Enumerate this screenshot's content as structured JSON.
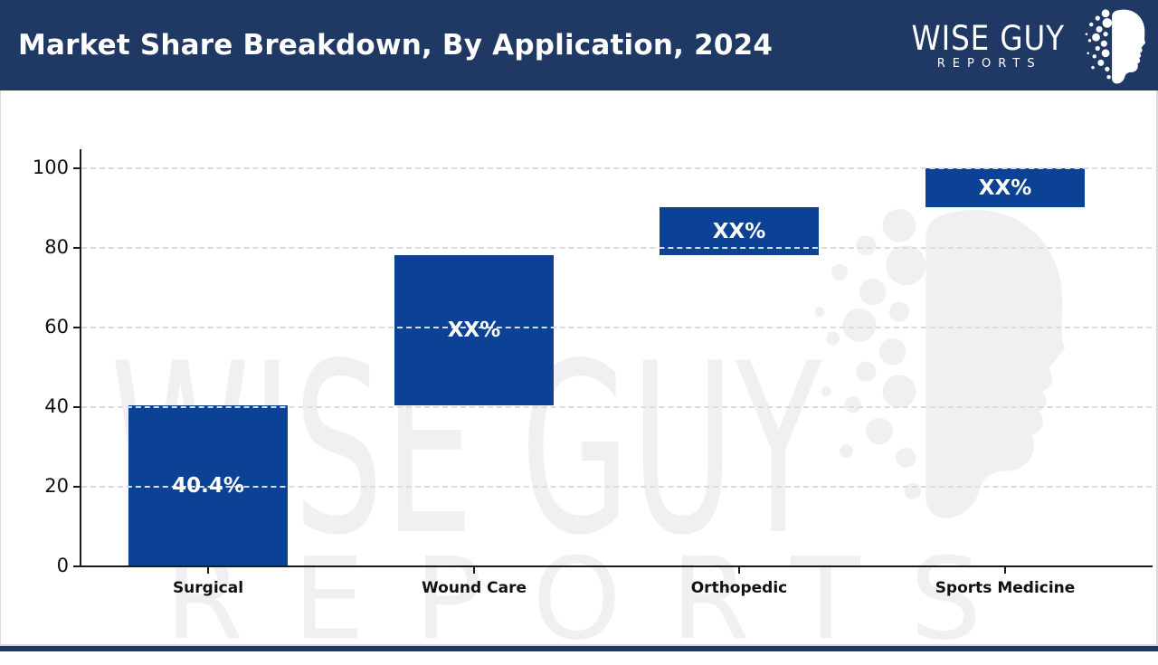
{
  "header": {
    "title": "Market Share Breakdown, By Application, 2024",
    "logo_name": "WISE GUY",
    "logo_sub": "REPORTS"
  },
  "watermark": {
    "name": "WISE GUY",
    "sub": "REPORTS"
  },
  "colors": {
    "header_bg": "#203864",
    "footer_bg": "#203864",
    "bar": "#0b4295",
    "grid": "#dcdcdc",
    "axis": "#1a1a1a",
    "bar_label": "#ffffff",
    "watermark": "#f0f0f2"
  },
  "chart_data": {
    "type": "bar",
    "subtype": "waterfall",
    "title": "Market Share Breakdown, By Application, 2024",
    "categories": [
      "Surgical",
      "Wound Care",
      "Orthopedic",
      "Sports Medicine"
    ],
    "segments": [
      {
        "category": "Surgical",
        "start": 0,
        "end": 40.4,
        "label": "40.4%"
      },
      {
        "category": "Wound Care",
        "start": 40.4,
        "end": 78.2,
        "label": "XX%"
      },
      {
        "category": "Orthopedic",
        "start": 78.2,
        "end": 90.2,
        "label": "XX%"
      },
      {
        "category": "Sports Medicine",
        "start": 90.2,
        "end": 100,
        "label": "XX%"
      }
    ],
    "xlabel": "",
    "ylabel": "",
    "yticks": [
      0,
      20,
      40,
      60,
      80,
      100
    ],
    "ylim": [
      0,
      105
    ],
    "grid": {
      "horizontal": true,
      "style": "dashed",
      "axisbelow": false
    },
    "legend": "none",
    "bar_color": "#0b4295",
    "value_label_position": "center"
  }
}
